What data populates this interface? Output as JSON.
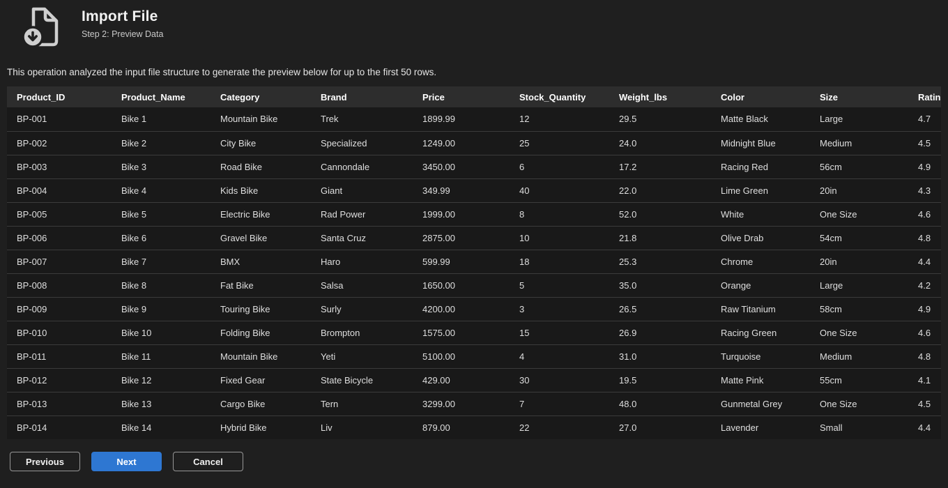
{
  "header": {
    "title": "Import File",
    "subtitle": "Step 2: Preview Data"
  },
  "description": "This operation analyzed the input file structure to generate the preview below for up to the first 50 rows.",
  "table": {
    "columns": [
      "Product_ID",
      "Product_Name",
      "Category",
      "Brand",
      "Price",
      "Stock_Quantity",
      "Weight_lbs",
      "Color",
      "Size",
      "Rating"
    ],
    "rows": [
      [
        "BP-001",
        "Bike 1",
        "Mountain Bike",
        "Trek",
        "1899.99",
        "12",
        "29.5",
        "Matte Black",
        "Large",
        "4.7"
      ],
      [
        "BP-002",
        "Bike 2",
        "City Bike",
        "Specialized",
        "1249.00",
        "25",
        "24.0",
        "Midnight Blue",
        "Medium",
        "4.5"
      ],
      [
        "BP-003",
        "Bike 3",
        "Road Bike",
        "Cannondale",
        "3450.00",
        "6",
        "17.2",
        "Racing Red",
        "56cm",
        "4.9"
      ],
      [
        "BP-004",
        "Bike 4",
        "Kids Bike",
        "Giant",
        "349.99",
        "40",
        "22.0",
        "Lime Green",
        "20in",
        "4.3"
      ],
      [
        "BP-005",
        "Bike 5",
        "Electric Bike",
        "Rad Power",
        "1999.00",
        "8",
        "52.0",
        "White",
        "One Size",
        "4.6"
      ],
      [
        "BP-006",
        "Bike 6",
        "Gravel Bike",
        "Santa Cruz",
        "2875.00",
        "10",
        "21.8",
        "Olive Drab",
        "54cm",
        "4.8"
      ],
      [
        "BP-007",
        "Bike 7",
        "BMX",
        "Haro",
        "599.99",
        "18",
        "25.3",
        "Chrome",
        "20in",
        "4.4"
      ],
      [
        "BP-008",
        "Bike 8",
        "Fat Bike",
        "Salsa",
        "1650.00",
        "5",
        "35.0",
        "Orange",
        "Large",
        "4.2"
      ],
      [
        "BP-009",
        "Bike 9",
        "Touring Bike",
        "Surly",
        "4200.00",
        "3",
        "26.5",
        "Raw Titanium",
        "58cm",
        "4.9"
      ],
      [
        "BP-010",
        "Bike 10",
        "Folding Bike",
        "Brompton",
        "1575.00",
        "15",
        "26.9",
        "Racing Green",
        "One Size",
        "4.6"
      ],
      [
        "BP-011",
        "Bike 11",
        "Mountain Bike",
        "Yeti",
        "5100.00",
        "4",
        "31.0",
        "Turquoise",
        "Medium",
        "4.8"
      ],
      [
        "BP-012",
        "Bike 12",
        "Fixed Gear",
        "State Bicycle",
        "429.00",
        "30",
        "19.5",
        "Matte Pink",
        "55cm",
        "4.1"
      ],
      [
        "BP-013",
        "Bike 13",
        "Cargo Bike",
        "Tern",
        "3299.00",
        "7",
        "48.0",
        "Gunmetal Grey",
        "One Size",
        "4.5"
      ],
      [
        "BP-014",
        "Bike 14",
        "Hybrid Bike",
        "Liv",
        "879.00",
        "22",
        "27.0",
        "Lavender",
        "Small",
        "4.4"
      ]
    ]
  },
  "footer": {
    "previous_label": "Previous",
    "next_label": "Next",
    "cancel_label": "Cancel"
  },
  "colors": {
    "accent_blue": "#2e77d2",
    "page_bg": "#1f1f1f",
    "table_header_bg": "#2d2d2d",
    "row_bg": "#191919",
    "row_divider": "#3b3b3b"
  }
}
